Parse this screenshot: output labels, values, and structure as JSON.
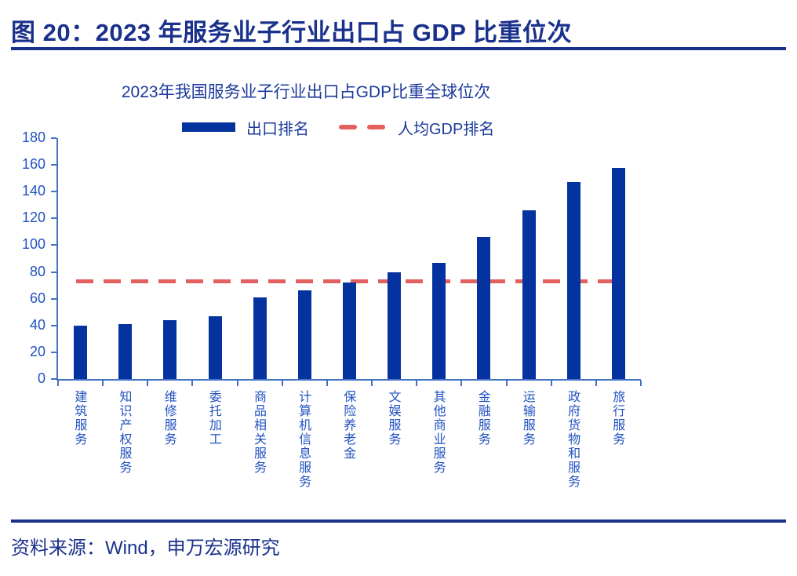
{
  "header": {
    "title": "图 20：2023 年服务业子行业出口占 GDP 比重位次"
  },
  "footer": {
    "source": "资料来源：Wind，申万宏源研究"
  },
  "colors": {
    "heading_navy": "#1A318C",
    "bar_blue": "#0433A0",
    "axis_blue": "#4472C4",
    "tick_label_blue": "#2152C0",
    "reference_red": "#E2605F"
  },
  "chart_data": {
    "type": "bar",
    "title": "2023年我国服务业子行业出口占GDP比重全球位次",
    "categories": [
      "建筑服务",
      "知识产权服务",
      "维修服务",
      "委托加工",
      "商品相关服务",
      "计算机信息服务",
      "保险养老金",
      "文娱服务",
      "其他商业服务",
      "金融服务",
      "运输服务",
      "政府货物和服务",
      "旅行服务"
    ],
    "series": [
      {
        "name": "出口排名",
        "type": "bar",
        "color": "#0433A0",
        "values": [
          40,
          41,
          44,
          47,
          61,
          66,
          72,
          80,
          87,
          106,
          126,
          147,
          158
        ]
      },
      {
        "name": "人均GDP排名",
        "type": "dashed_reference_line",
        "color": "#E2605F",
        "value": 73
      }
    ],
    "xlabel": "",
    "ylabel": "",
    "ylim": [
      0,
      180
    ],
    "ytick_step": 20,
    "grid": false,
    "legend_position": "top-center"
  }
}
